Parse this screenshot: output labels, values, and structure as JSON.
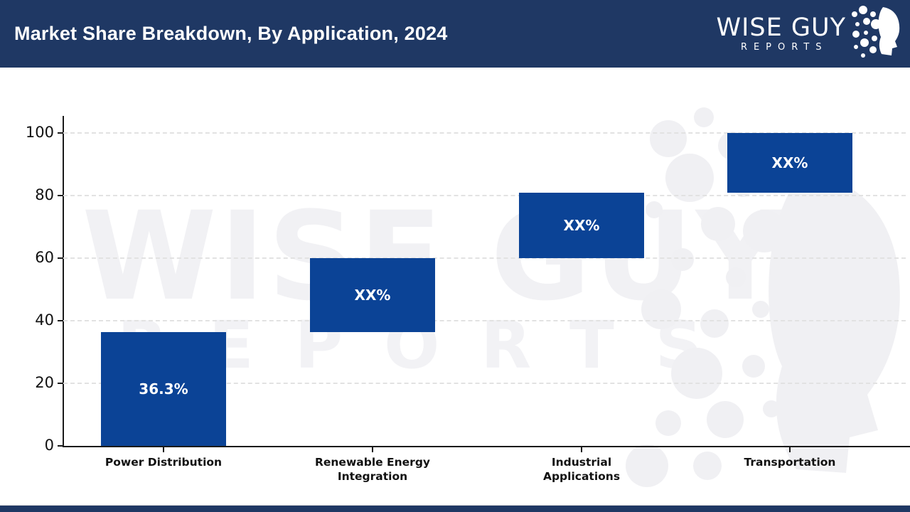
{
  "header": {
    "title": "Market Share Breakdown, By Application, 2024",
    "logo_line1": "WISE GUY",
    "logo_line2": "REPORTS"
  },
  "watermark": {
    "line1": "WISE GUY",
    "line2": "REPORTS"
  },
  "colors": {
    "header_bg": "#1f3864",
    "footer_bg": "#1f3864",
    "bar": "#0b4396",
    "bar_label_text": "#ffffff",
    "gridline": "#e2e2e2",
    "axis": "#1a1a1a",
    "watermark": "#f1f1f4"
  },
  "chart_data": {
    "type": "bar",
    "subtype": "floating-waterfall",
    "title": "Market Share Breakdown, By Application, 2024",
    "categories": [
      "Power Distribution",
      "Renewable Energy Integration",
      "Industrial Applications",
      "Transportation"
    ],
    "category_label_lines": [
      [
        "Power Distribution"
      ],
      [
        "Renewable Energy",
        "Integration"
      ],
      [
        "Industrial",
        "Applications"
      ],
      [
        "Transportation"
      ]
    ],
    "bars": [
      {
        "category": "Power Distribution",
        "start": 0,
        "end": 36.3,
        "label": "36.3%"
      },
      {
        "category": "Renewable Energy Integration",
        "start": 36.3,
        "end": 60,
        "label": "XX%"
      },
      {
        "category": "Industrial Applications",
        "start": 60,
        "end": 81,
        "label": "XX%"
      },
      {
        "category": "Transportation",
        "start": 81,
        "end": 100,
        "label": "XX%"
      }
    ],
    "xlabel": "",
    "ylabel": "",
    "ylim": [
      0,
      100
    ],
    "yticks": [
      0,
      20,
      40,
      60,
      80,
      100
    ],
    "grid": "horizontal-dashed",
    "legend": "none"
  }
}
